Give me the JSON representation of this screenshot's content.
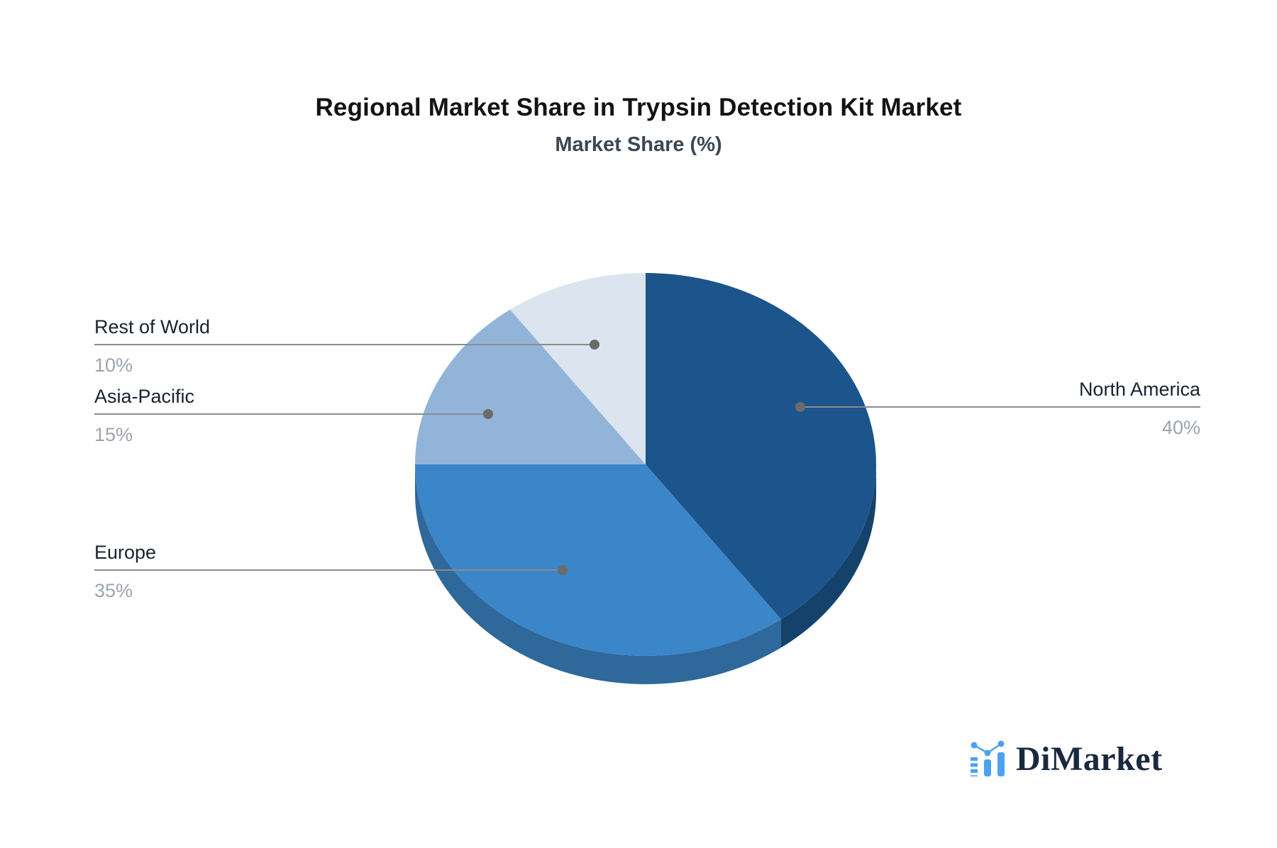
{
  "header": {
    "title": "Regional Market Share in Trypsin Detection Kit Market",
    "subtitle": "Market Share (%)"
  },
  "chart_data": {
    "type": "pie",
    "title": "Regional Market Share in Trypsin Detection Kit Market",
    "subtitle": "Market Share (%)",
    "unit": "%",
    "start_angle_deg": 0,
    "direction": "clockwise",
    "effect": "3d-depth",
    "legend": "none",
    "slices": [
      {
        "label": "North America",
        "value": 40,
        "value_label": "40%",
        "color": "#1C548C",
        "side_color": "#15426B",
        "label_side": "right"
      },
      {
        "label": "Europe",
        "value": 35,
        "value_label": "35%",
        "color": "#3B85C9",
        "side_color": "#2F689A",
        "label_side": "left"
      },
      {
        "label": "Asia-Pacific",
        "value": 15,
        "value_label": "15%",
        "color": "#93B4D9",
        "side_color": "#7F9FC4",
        "label_side": "left"
      },
      {
        "label": "Rest of World",
        "value": 10,
        "value_label": "10%",
        "color": "#DCE4EF",
        "side_color": "#C2CEDE",
        "label_side": "left"
      }
    ],
    "leader_line_color": "#8C8C8C",
    "leader_dot_color": "#6B6B6B",
    "label_color": "#1A2230",
    "value_color": "#9EA4AC",
    "title_color": "#131313",
    "subtitle_color": "#3D4654"
  },
  "branding": {
    "logo_text": "DiMarket",
    "logo_icon": "bar-chart-trend-icon",
    "icon_color": "#4DA2EE",
    "text_color": "#1B2940"
  }
}
